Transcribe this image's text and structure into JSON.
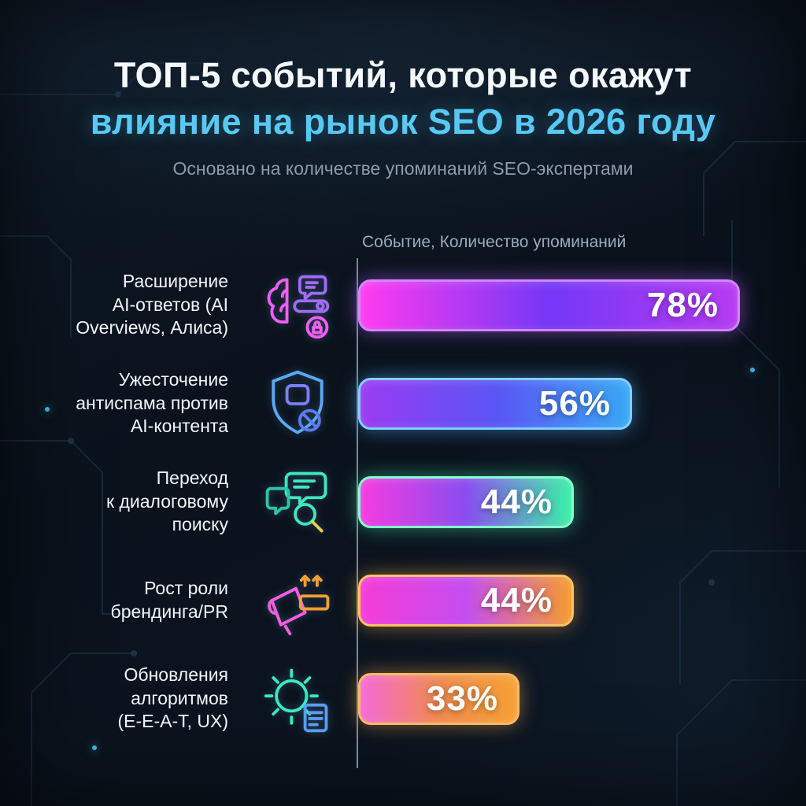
{
  "page": {
    "background": "#0b131d",
    "accent": "#57c9f4"
  },
  "header": {
    "title_line1": "ТОП-5 событий, которые окажут",
    "title_line2": "влияние на рынок SEO в 2026 году",
    "subtitle": "Основано на количестве упоминаний SEO-экспертами"
  },
  "chart_data": {
    "type": "bar",
    "orientation": "horizontal",
    "column_header": "Событие, Количество упоминаний",
    "xlim": [
      0,
      78
    ],
    "categories": [
      "Расширение AI-ответов (AI Overviews, Алиса)",
      "Ужесточение антиспама против AI-контента",
      "Переход к диалоговому поиску",
      "Рост роли брендинга/PR",
      "Обновления алгоритмов (E-E-A-T, UX)"
    ],
    "values": [
      78,
      56,
      44,
      44,
      33
    ],
    "bars": [
      {
        "label": "Расширение\nAI-ответов (AI\nOverviews, Алиса)",
        "value": 78,
        "percent": "78%",
        "icon": "ai-brain-icon",
        "gradient": [
          "#ff3bf0",
          "#7438f6",
          "#b63bf2"
        ],
        "border": "#d086ff",
        "glow": "rgba(186,92,255,0.55)"
      },
      {
        "label": "Ужесточение\nантиспама против\nAI-контента",
        "value": 56,
        "percent": "56%",
        "icon": "shield-ai-icon",
        "gradient": [
          "#9a3bf2",
          "#5a55f5",
          "#38a8f5"
        ],
        "border": "#7fd0ff",
        "glow": "rgba(80,170,255,0.55)"
      },
      {
        "label": "Переход\nк диалоговому\nпоиску",
        "value": 44,
        "percent": "44%",
        "icon": "chat-search-icon",
        "gradient": [
          "#f53be0",
          "#8a4df0",
          "#3bf0a6"
        ],
        "border": "#86ffd0",
        "glow": "rgba(70,240,170,0.5)"
      },
      {
        "label": "Рост роли\nбрендинга/PR",
        "value": 44,
        "percent": "44%",
        "icon": "megaphone-brand-icon",
        "gradient": [
          "#f53bd6",
          "#c44df0",
          "#f59b2e"
        ],
        "border": "#ffc266",
        "glow": "rgba(255,170,70,0.5)"
      },
      {
        "label": "Обновления\nалгоритмов\n(E-E-A-T, UX)",
        "value": 33,
        "percent": "33%",
        "icon": "gear-eeat-icon",
        "gradient": [
          "#f56ad6",
          "#f08a50",
          "#f5a032"
        ],
        "border": "#ffb866",
        "glow": "rgba(255,170,70,0.5)"
      }
    ]
  }
}
